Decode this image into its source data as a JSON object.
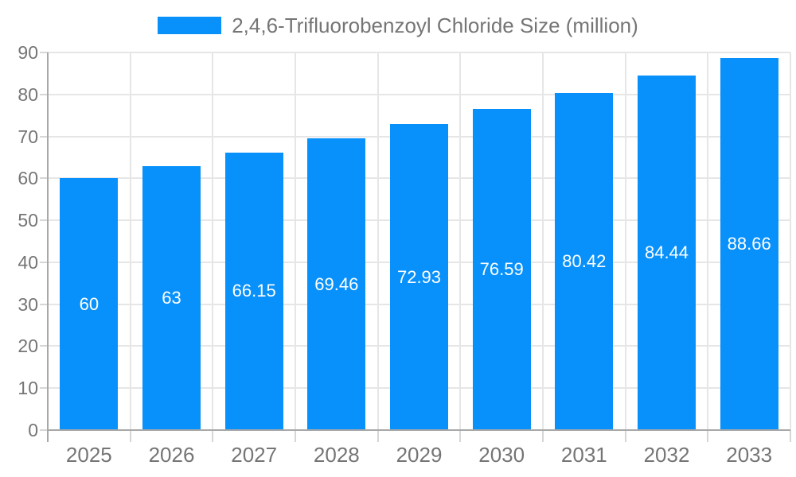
{
  "chart_data": {
    "type": "bar",
    "title": "2,4,6-Trifluorobenzoyl Chloride Size (million)",
    "legend_entries": [
      "2,4,6-Trifluorobenzoyl Chloride Size (million)"
    ],
    "legend_position": "top-center",
    "categories": [
      "2025",
      "2026",
      "2027",
      "2028",
      "2029",
      "2030",
      "2031",
      "2032",
      "2033"
    ],
    "values": [
      60,
      63,
      66.15,
      69.46,
      72.93,
      76.59,
      80.42,
      84.44,
      88.66
    ],
    "value_labels": [
      "60",
      "63",
      "66.15",
      "69.46",
      "72.93",
      "76.59",
      "80.42",
      "84.44",
      "88.66"
    ],
    "xlabel": "",
    "ylabel": "",
    "ylim": [
      0,
      90
    ],
    "ytick_step": 10,
    "ytick_labels": [
      "0",
      "10",
      "20",
      "30",
      "40",
      "50",
      "60",
      "70",
      "80",
      "90"
    ],
    "grid": true,
    "colors": {
      "bar": "#0891fb",
      "grid": "#e6e6e6",
      "axis": "#a8a8a8",
      "tick": "#d6d6d6",
      "text": "#757575",
      "bar_label": "#ffffff",
      "background": "#ffffff"
    }
  }
}
